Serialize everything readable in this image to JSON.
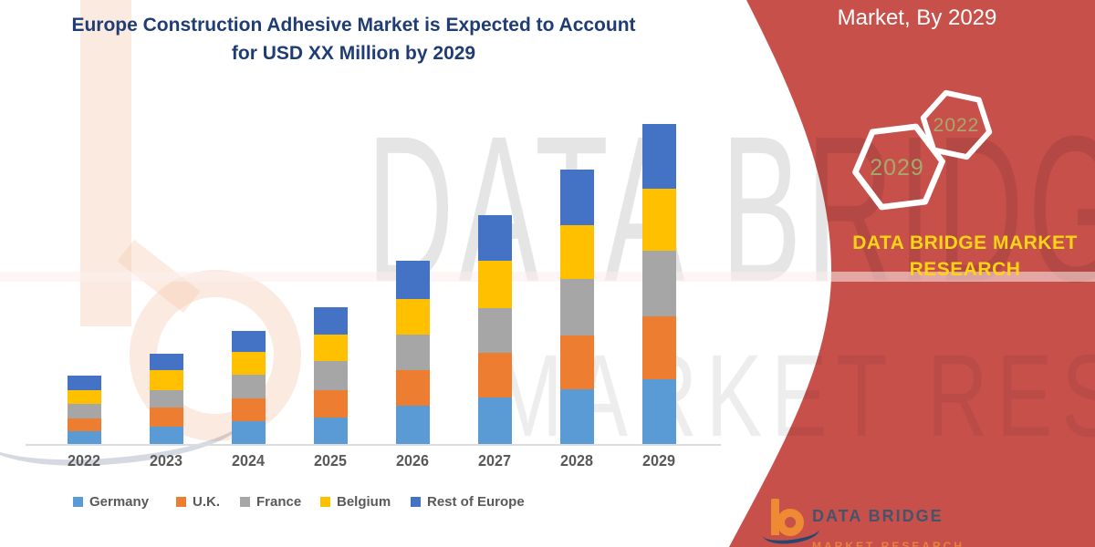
{
  "title": {
    "line1": "Europe Construction Adhesive Market is Expected to Account",
    "line2": "for USD XX Million by 2029"
  },
  "watermark": {
    "line1": "DATA BRIDGE",
    "line2": "MARKET RESEARCH"
  },
  "right_panel": {
    "bg_color": "#C8504B",
    "heading": "Market, By 2029",
    "hexagons": [
      {
        "label": "2029"
      },
      {
        "label": "2022"
      }
    ],
    "hex_text_color": "#a6a96b",
    "brand_line1": "DATA BRIDGE MARKET",
    "brand_line2": "RESEARCH",
    "brand_color": "#ffd414",
    "logo_text": "DATA BRIDGE",
    "logo_sub_text": "MARKET RESEARCH"
  },
  "chart_data": {
    "type": "bar",
    "stacked": true,
    "title": "Europe Construction Adhesive Market is Expected to Account for USD XX Million by 2029",
    "xlabel": "",
    "ylabel": "",
    "value_units": "relative units (y-axis not labeled; market value shown as USD XX Million)",
    "gridlines": false,
    "legend_position": "bottom",
    "categories": [
      "2022",
      "2023",
      "2024",
      "2025",
      "2026",
      "2027",
      "2028",
      "2029"
    ],
    "series": [
      {
        "name": "Germany",
        "color": "#5B9BD5",
        "values": [
          15,
          20,
          26,
          30,
          43,
          52,
          61,
          72
        ]
      },
      {
        "name": "U.K.",
        "color": "#ED7D31",
        "values": [
          14,
          21,
          25,
          30,
          39,
          49,
          59,
          69
        ]
      },
      {
        "name": "France",
        "color": "#A6A6A6",
        "values": [
          16,
          19,
          26,
          32,
          39,
          49,
          62,
          72
        ]
      },
      {
        "name": "Belgium",
        "color": "#FFC000",
        "values": [
          15,
          22,
          25,
          29,
          39,
          52,
          59,
          68
        ]
      },
      {
        "name": "Rest of Europe",
        "color": "#4472C4",
        "values": [
          16,
          18,
          23,
          30,
          42,
          50,
          61,
          71
        ]
      }
    ],
    "totals": [
      76,
      100,
      125,
      151,
      202,
      252,
      302,
      352
    ]
  }
}
